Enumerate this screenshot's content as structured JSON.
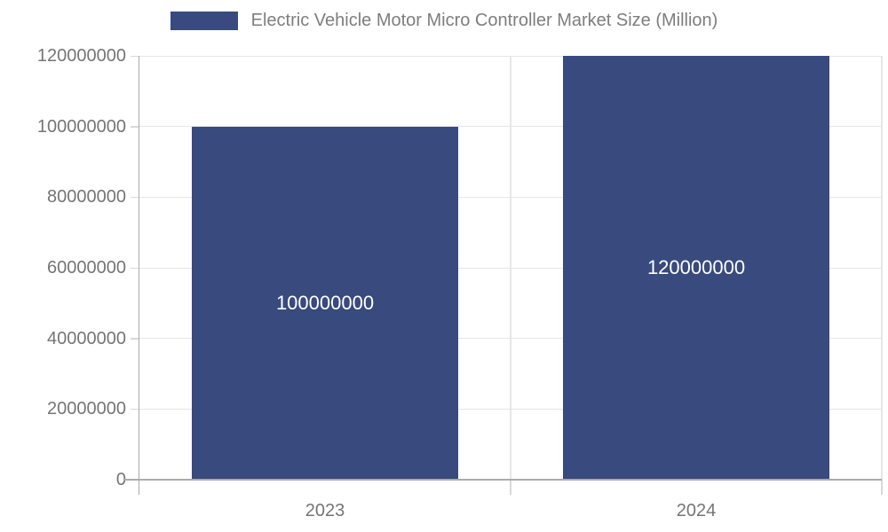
{
  "chart_data": {
    "type": "bar",
    "title": "Electric Vehicle Motor Micro Controller Market Size (Million)",
    "categories": [
      "2023",
      "2024"
    ],
    "series": [
      {
        "name": "Electric Vehicle Motor Micro Controller Market Size (Million)",
        "values": [
          100000000,
          120000000
        ]
      }
    ],
    "data_labels": [
      "100000000",
      "120000000"
    ],
    "xlabel": "",
    "ylabel": "",
    "ylim": [
      0,
      120000000
    ],
    "ytick_step": 20000000,
    "ytick_labels": [
      "0",
      "20000000",
      "40000000",
      "60000000",
      "80000000",
      "100000000",
      "120000000"
    ],
    "grid": true,
    "legend_position": "top",
    "colors": {
      "bar": "#384A7E",
      "axis_line": "#ABABAB",
      "gridline": "#E6E6E6",
      "tick": "#D9D9D9",
      "label_text": "#757575",
      "legend_text": "#7E7E7E",
      "data_label_text": "#FFFFFF",
      "background": "#FFFFFF"
    }
  },
  "legend": {
    "items": [
      {
        "label": "Electric Vehicle Motor Micro Controller Market Size (Million)"
      }
    ]
  }
}
